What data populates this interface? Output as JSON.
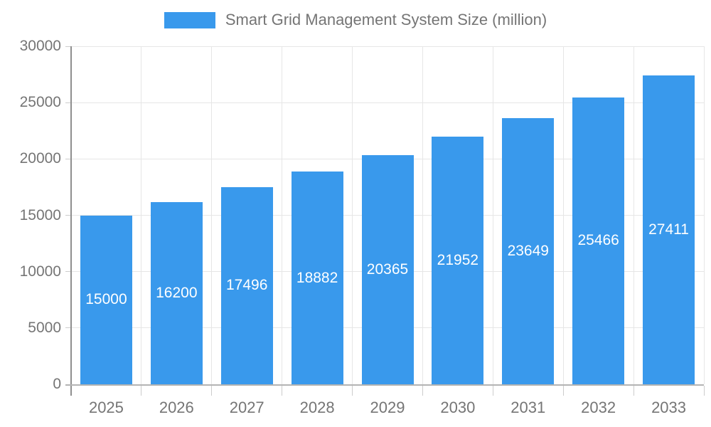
{
  "chart_data": {
    "type": "bar",
    "title": "Smart Grid Management System Size (million)",
    "legend_position": "top",
    "categories": [
      "2025",
      "2026",
      "2027",
      "2028",
      "2029",
      "2030",
      "2031",
      "2032",
      "2033"
    ],
    "series": [
      {
        "name": "Smart Grid Management System Size (million)",
        "values": [
          15000,
          16200,
          17496,
          18882,
          20365,
          21952,
          23649,
          25466,
          27411
        ]
      }
    ],
    "bar_value_labels": [
      "15000",
      "16200",
      "17496",
      "18882",
      "20365",
      "21952",
      "23649",
      "25466",
      "27411"
    ],
    "xlabel": "",
    "ylabel": "",
    "ylim": [
      0,
      30000
    ],
    "y_ticks": [
      0,
      5000,
      10000,
      15000,
      20000,
      25000,
      30000
    ],
    "y_tick_labels": [
      "0",
      "5000",
      "10000",
      "15000",
      "20000",
      "25000",
      "30000"
    ],
    "grid": true,
    "colors": {
      "bar": "#3999EC",
      "bar_label": "#FFFFFF",
      "tick_text": "#757575",
      "legend_text": "#757575",
      "gridline": "#E6E6E6",
      "x_axis_line": "#B3B3B3",
      "y_axis_line": "#8F8F8F",
      "tick_mark": "#CCCCCC",
      "background": "#FFFFFF"
    }
  }
}
